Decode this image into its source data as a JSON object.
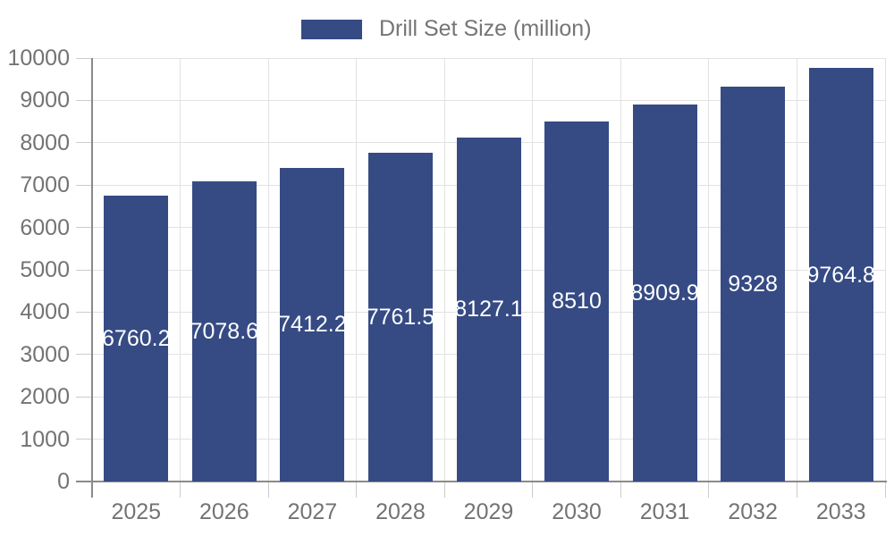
{
  "colors": {
    "bar": "#364B84",
    "axis_text": "#737373",
    "legend_text": "#757575",
    "value_label_text": "#FFFFFF",
    "grid_line": "#E2E2E2",
    "tick_line": "#CCCCCC",
    "axis_line": "#8A8A8A",
    "background": "#FFFFFF"
  },
  "legend": {
    "label": "Drill Set Size (million)"
  },
  "chart_data": {
    "type": "bar",
    "categories": [
      "2025",
      "2026",
      "2027",
      "2028",
      "2029",
      "2030",
      "2031",
      "2032",
      "2033"
    ],
    "series": [
      {
        "name": "Drill Set Size (million)",
        "values": [
          6760.2,
          7078.6,
          7412.2,
          7761.5,
          8127.1,
          8510,
          8909.9,
          9328,
          9764.8
        ]
      }
    ],
    "value_labels": [
      "6760.2",
      "7078.6",
      "7412.2",
      "7761.5",
      "8127.1",
      "8510",
      "8909.9",
      "9328",
      "9764.8"
    ],
    "value_label_position": "inside-center",
    "ylim": [
      0,
      10000
    ],
    "yticks": [
      0,
      1000,
      2000,
      3000,
      4000,
      5000,
      6000,
      7000,
      8000,
      9000,
      10000
    ],
    "grid": true,
    "legend_position": "top-center"
  }
}
